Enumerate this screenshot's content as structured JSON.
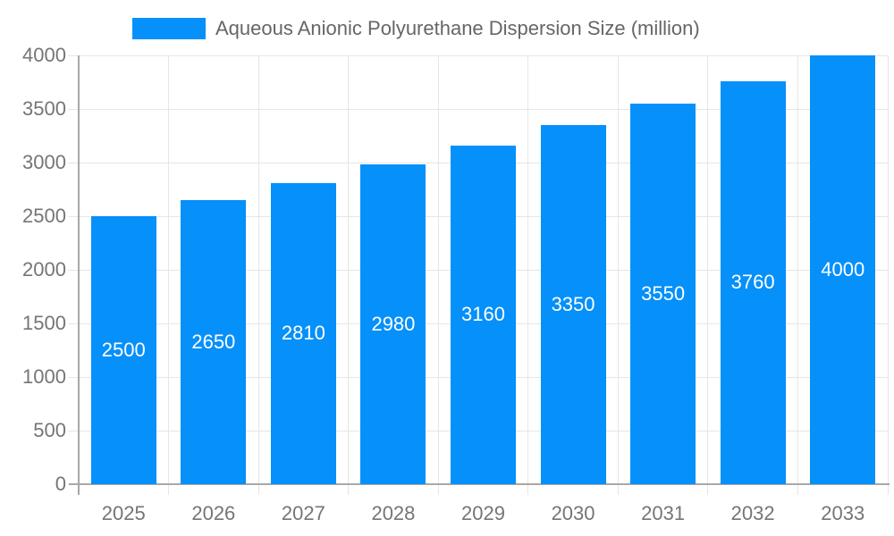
{
  "chart_data": {
    "type": "bar",
    "title": "Aqueous Anionic Polyurethane Dispersion Size (million)",
    "categories": [
      "2025",
      "2026",
      "2027",
      "2028",
      "2029",
      "2030",
      "2031",
      "2032",
      "2033"
    ],
    "values": [
      2500,
      2650,
      2810,
      2980,
      3160,
      3350,
      3550,
      3760,
      4000
    ],
    "xlabel": "",
    "ylabel": "",
    "ylim": [
      0,
      4000
    ],
    "ytick_step": 500,
    "yticks": [
      "0",
      "500",
      "1000",
      "1500",
      "2000",
      "2500",
      "3000",
      "3500",
      "4000"
    ],
    "legend_position": "top",
    "grid": true,
    "bar_value_labels_inside": true,
    "colors": {
      "bar": "#0590fa",
      "grid": "#e6e6e6",
      "axis": "#a8a8a8",
      "tick_text": "#757575",
      "legend_text": "#666666",
      "bar_label": "#ffffff",
      "background": "#ffffff"
    }
  }
}
